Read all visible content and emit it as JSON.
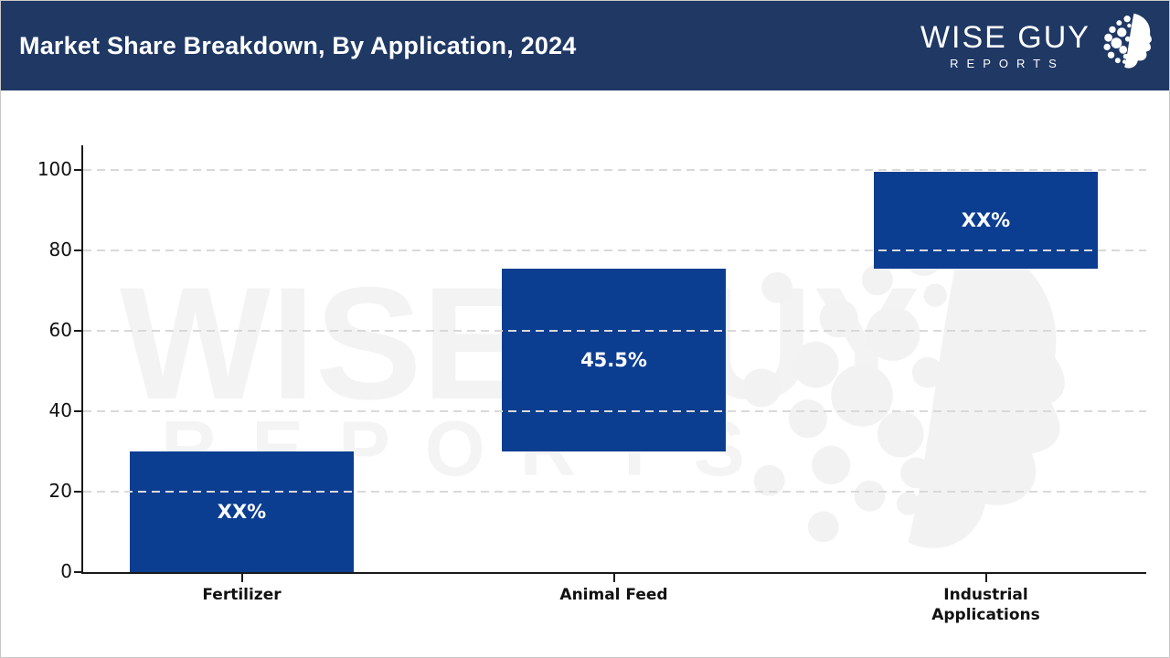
{
  "header": {
    "title": "Market Share Breakdown, By Application, 2024",
    "bg_color": "#1f3864",
    "logo": {
      "line1": "WISE GUY",
      "line2": "REPORTS"
    }
  },
  "watermark": {
    "line1": "WISE GUY",
    "line2": "REPORTS"
  },
  "chart_data": {
    "type": "bar",
    "subtype": "floating-waterfall-segments",
    "title": "Market Share Breakdown, By Application, 2024",
    "categories": [
      "Fertilizer",
      "Animal Feed",
      "Industrial Applications"
    ],
    "bars": [
      {
        "category": "Fertilizer",
        "start": 0,
        "end": 30,
        "label": "XX%"
      },
      {
        "category": "Animal Feed",
        "start": 30,
        "end": 75.5,
        "label": "45.5%"
      },
      {
        "category": "Industrial Applications",
        "start": 75.5,
        "end": 99.5,
        "label": "XX%"
      }
    ],
    "xlabel": "",
    "ylabel": "",
    "ylim": [
      0,
      100
    ],
    "yticks": [
      0,
      20,
      40,
      60,
      80,
      100
    ],
    "bar_color": "#0b3d91",
    "grid": "horizontal-dashed-over-bars",
    "grid_color": "#d9d9d9",
    "legend": "none"
  }
}
